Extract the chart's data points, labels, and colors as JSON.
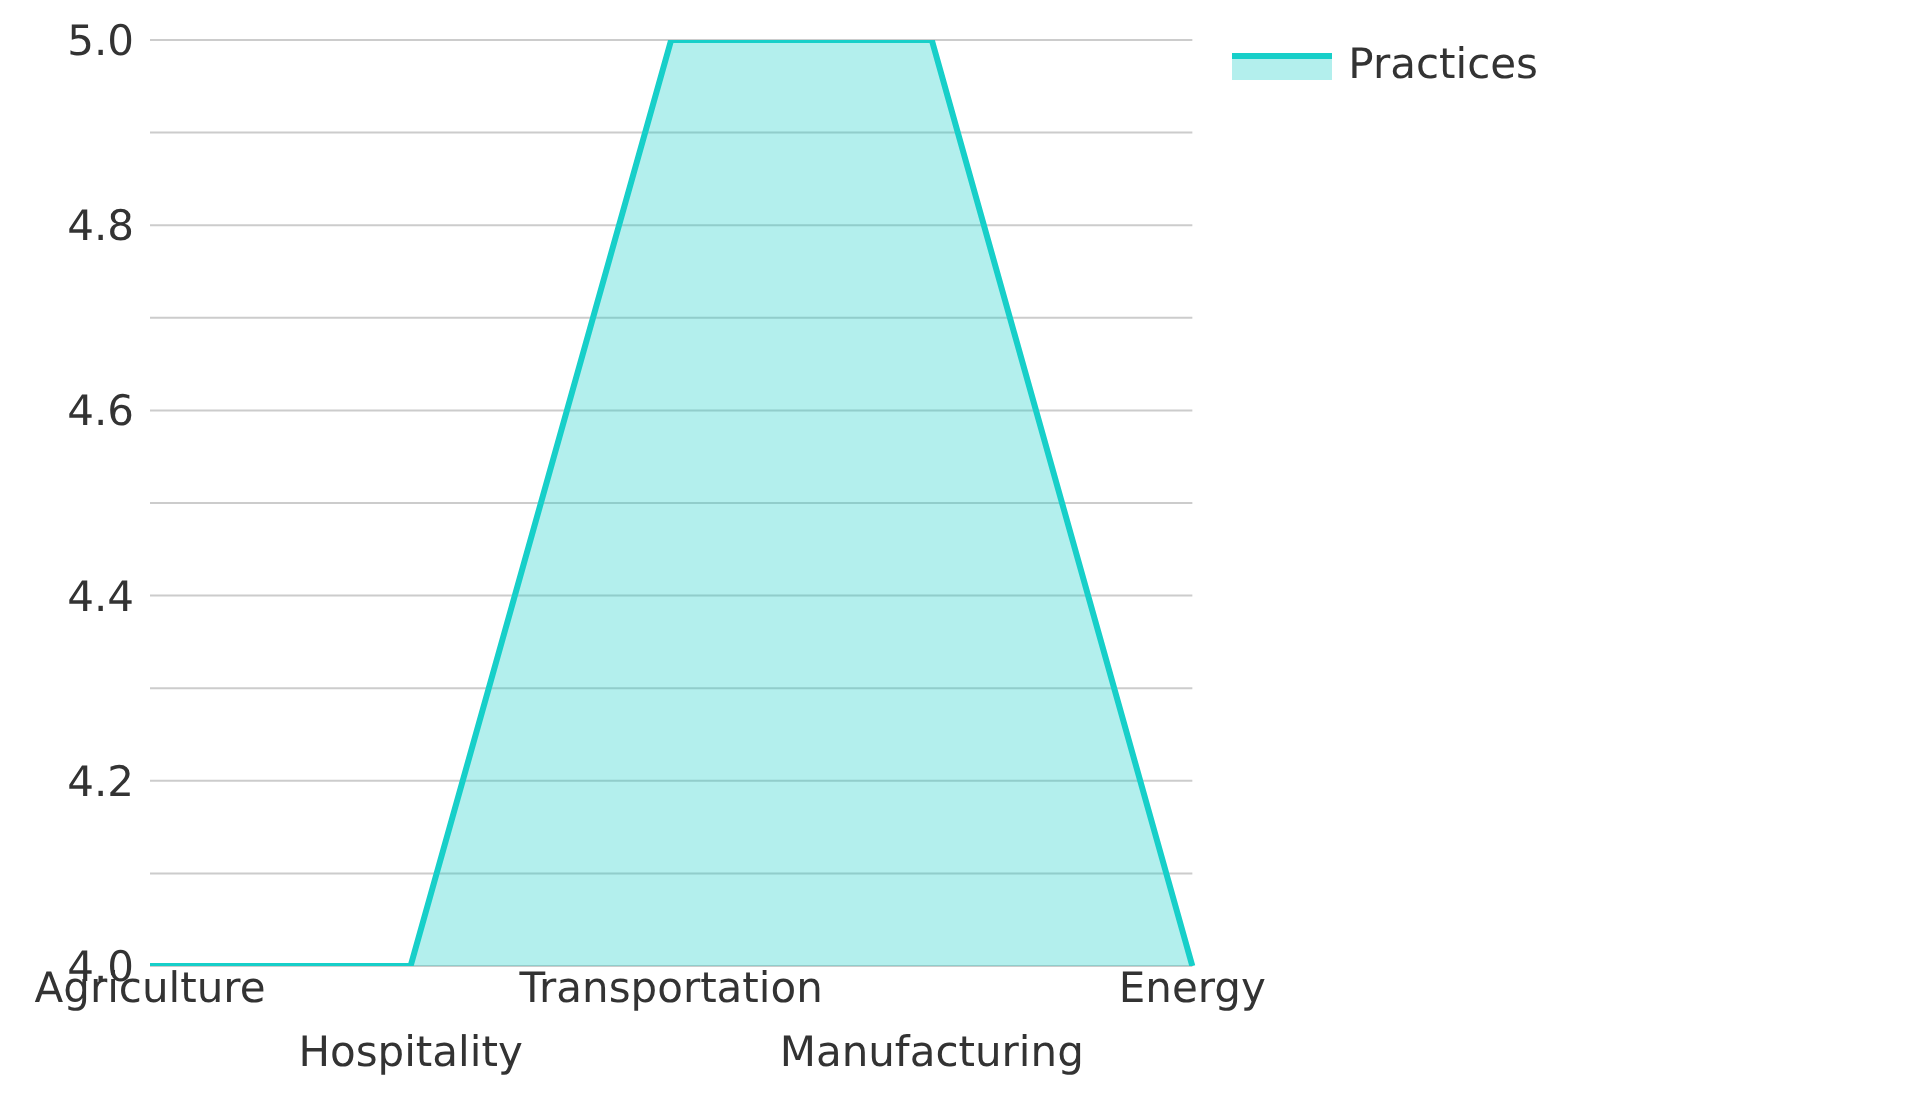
{
  "chart_data": {
    "type": "area",
    "categories": [
      "Agriculture",
      "Hospitality",
      "Transportation",
      "Manufacturing",
      "Energy"
    ],
    "series": [
      {
        "name": "Practices",
        "color": "#17cfc9",
        "values": [
          4.0,
          4.0,
          5.0,
          5.0,
          4.0
        ]
      }
    ],
    "ylim": [
      4.0,
      5.0
    ],
    "yticks": [
      {
        "value": 4.0,
        "label": "4.0"
      },
      {
        "value": 4.1,
        "label": null
      },
      {
        "value": 4.2,
        "label": "4.2"
      },
      {
        "value": 4.3,
        "label": null
      },
      {
        "value": 4.4,
        "label": "4.4"
      },
      {
        "value": 4.5,
        "label": null
      },
      {
        "value": 4.6,
        "label": "4.6"
      },
      {
        "value": 4.7,
        "label": null
      },
      {
        "value": 4.8,
        "label": "4.8"
      },
      {
        "value": 4.9,
        "label": null
      },
      {
        "value": 5.0,
        "label": "5.0"
      }
    ],
    "grid": "y",
    "legend": "top right"
  }
}
